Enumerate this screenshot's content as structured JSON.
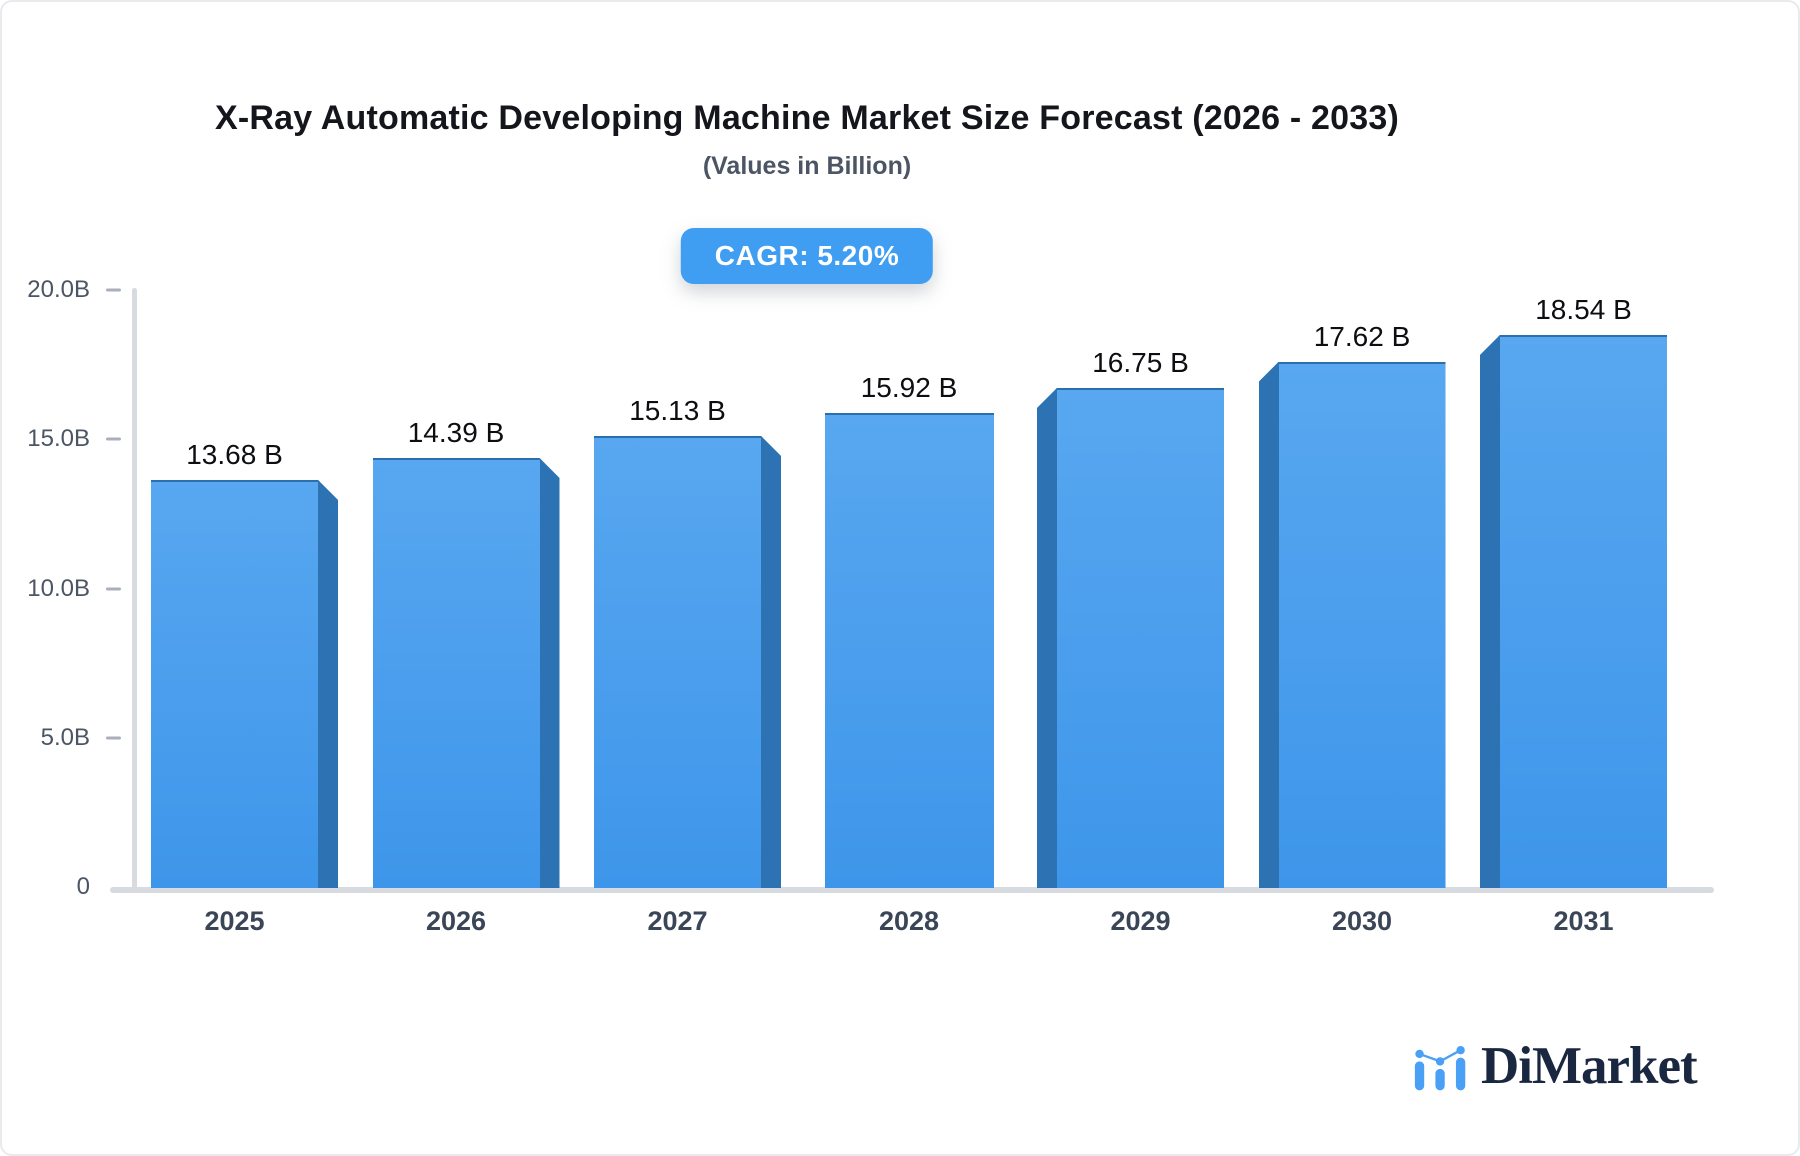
{
  "title": "X-Ray Automatic Developing Machine Market Size Forecast (2026 - 2033)",
  "subtitle": "(Values in Billion)",
  "badge": {
    "label": "CAGR: 5.20%"
  },
  "chart_data": {
    "type": "bar",
    "title": "X-Ray Automatic Developing Machine Market Size Forecast (2026 - 2033)",
    "subtitle": "(Values in Billion)",
    "cagr": "5.20%",
    "categories": [
      "2025",
      "2026",
      "2027",
      "2028",
      "2029",
      "2030",
      "2031"
    ],
    "values": [
      13.68,
      14.39,
      15.13,
      15.92,
      16.75,
      17.62,
      18.54
    ],
    "value_labels": [
      "13.68 B",
      "14.39 B",
      "15.13 B",
      "15.92 B",
      "16.75 B",
      "17.62 B",
      "18.54 B"
    ],
    "xlabel": "",
    "ylabel": "",
    "ylim": [
      0,
      20
    ],
    "y_ticks": [
      {
        "label": "20.0B",
        "value": 20
      },
      {
        "label": "15.0B",
        "value": 15
      },
      {
        "label": "10.0B",
        "value": 10
      },
      {
        "label": "5.0B",
        "value": 5
      },
      {
        "label": "0",
        "value": 0
      }
    ],
    "grid": false,
    "legend": false,
    "bar_face_top_color": "#58a7f0",
    "bar_face_bottom_color": "#3e96ea",
    "bar_side_color": "#2d73b4",
    "bar_top_edge_color": "#2a6fae"
  },
  "logo": {
    "text": "DiMarket",
    "icon": "mini-bar-chart-icon",
    "icon_color": "#4aa0f5",
    "text_color": "#1a2740"
  },
  "colors": {
    "badge_bg": "#3f9ef2",
    "axis_line": "#d7dade",
    "tick_dash": "#a9b0ba",
    "tick_text": "#4b5563",
    "x_label_text": "#3a4557",
    "value_text": "#0d0e12"
  }
}
